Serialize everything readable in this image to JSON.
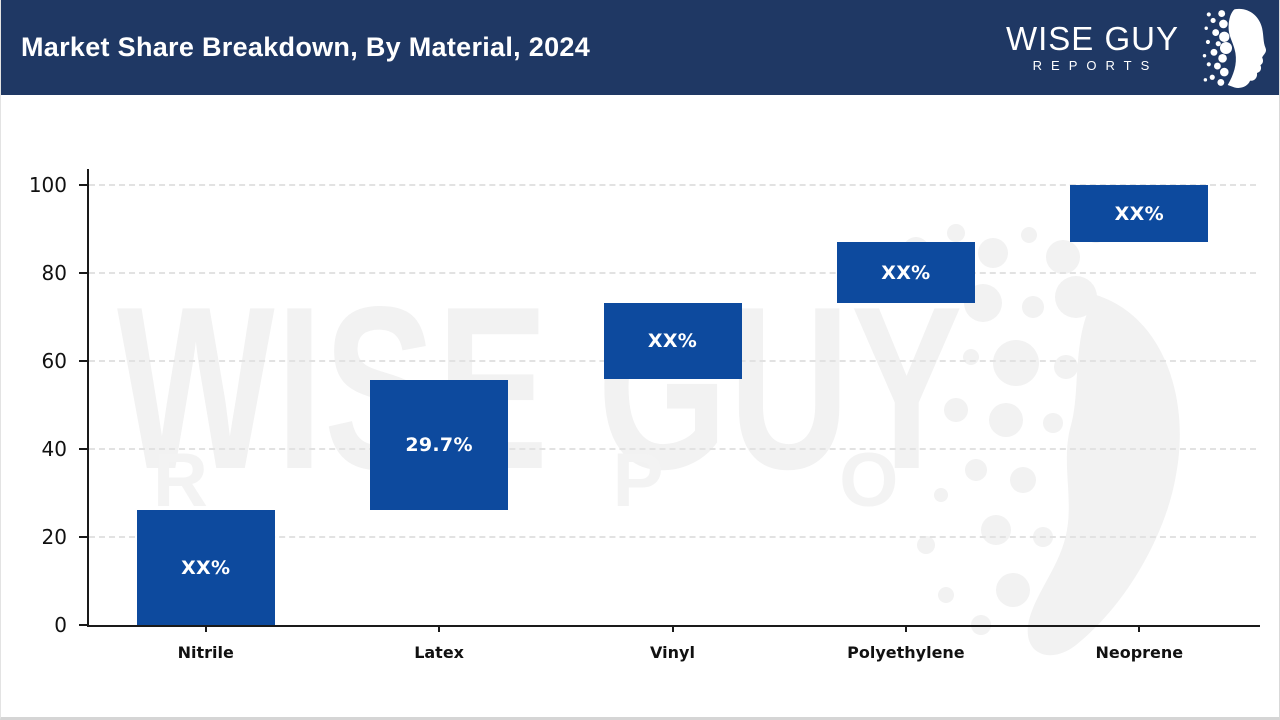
{
  "header": {
    "title": "Market Share Breakdown, By Material, 2024",
    "bg_color": "#1f3864",
    "logo": {
      "line1": "WISE GUY",
      "line2": "REPORTS"
    }
  },
  "watermark": {
    "line1": "WISE GUY",
    "line2": "R E P O R T S"
  },
  "chart_data": {
    "type": "bar",
    "subtype": "waterfall-floating-bars",
    "title": "Market Share Breakdown, By Material, 2024",
    "categories": [
      "Nitrile",
      "Latex",
      "Vinyl",
      "Polyethylene",
      "Neoprene"
    ],
    "segments": [
      {
        "category": "Nitrile",
        "start": 0,
        "end": 26.1,
        "value": 26.1,
        "label": "XX%"
      },
      {
        "category": "Latex",
        "start": 26.1,
        "end": 55.8,
        "value": 29.7,
        "label": "29.7%"
      },
      {
        "category": "Vinyl",
        "start": 55.8,
        "end": 73.2,
        "value": 17.4,
        "label": "XX%"
      },
      {
        "category": "Polyethylene",
        "start": 73.2,
        "end": 87.0,
        "value": 13.8,
        "label": "XX%"
      },
      {
        "category": "Neoprene",
        "start": 87.0,
        "end": 100,
        "value": 13.0,
        "label": "XX%"
      }
    ],
    "xlabel": "",
    "ylabel": "",
    "ylim": [
      0,
      104
    ],
    "yticks": [
      0,
      20,
      40,
      60,
      80,
      100
    ],
    "grid": "horizontal-dashed",
    "legend": "none",
    "bar_color": "#0d4a9e",
    "bar_label_color": "#ffffff",
    "axis_color": "#1a1a1a"
  }
}
